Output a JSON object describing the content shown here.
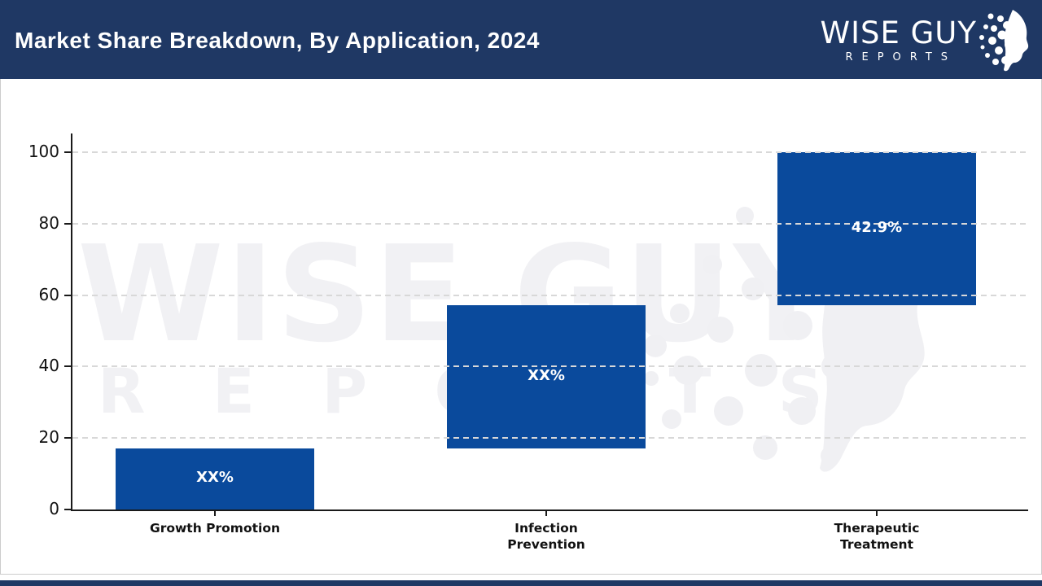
{
  "header": {
    "title": "Market Share Breakdown, By Application, 2024",
    "logo": {
      "brand": "WISE GUY",
      "sub": "REPORTS"
    }
  },
  "watermark": {
    "line1": "WISE GUY",
    "line2": "R E P O R T S"
  },
  "colors": {
    "navy": "#1f3864",
    "bar_blue": "#0a4a9c",
    "gridline": "#d8d8d8",
    "axis": "#1a1a1a",
    "watermark": "#f1f1f4"
  },
  "chart_data": {
    "type": "bar",
    "subtype": "stacked-waterfall-floating-bars",
    "title": "Market Share Breakdown, By Application, 2024",
    "categories": [
      [
        "Growth Promotion"
      ],
      [
        "Infection",
        "Prevention"
      ],
      [
        "Therapeutic",
        "Treatment"
      ]
    ],
    "bars": [
      {
        "category": "Growth Promotion",
        "start": 0,
        "end": 17.1,
        "label": "XX%"
      },
      {
        "category": "Infection Prevention",
        "start": 17.1,
        "end": 57.1,
        "label": "XX%"
      },
      {
        "category": "Therapeutic Treatment",
        "start": 57.1,
        "end": 100,
        "label": "42.9%"
      }
    ],
    "value_suffix": "%",
    "ylim": [
      0,
      100
    ],
    "yticks": [
      0,
      20,
      40,
      60,
      80,
      100
    ],
    "xlabel": "",
    "ylabel": "",
    "grid": "horizontal-dashed",
    "legend": null,
    "bar_color": "#0a4a9c",
    "bar_label_color": "#ffffff"
  }
}
